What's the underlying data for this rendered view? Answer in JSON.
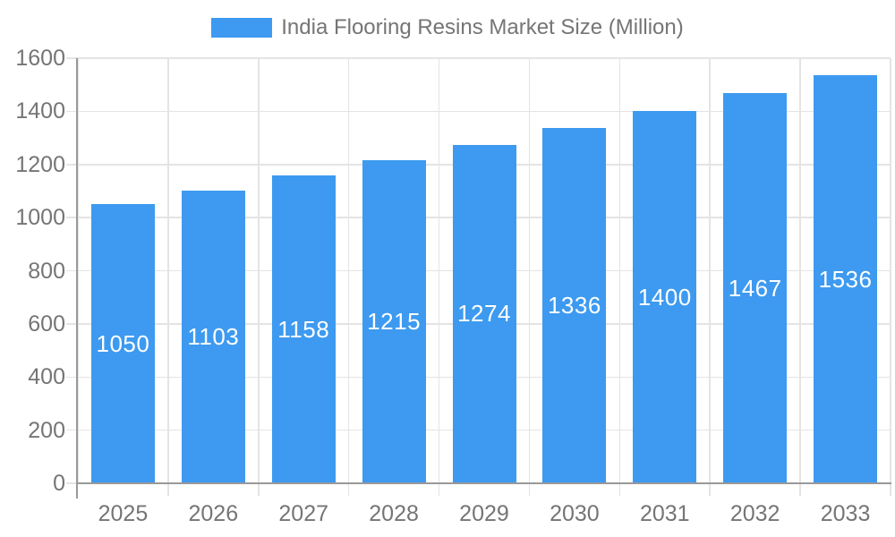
{
  "chart_data": {
    "type": "bar",
    "title": "India Flooring Resins Market Size (Million)",
    "categories": [
      "2025",
      "2026",
      "2027",
      "2028",
      "2029",
      "2030",
      "2031",
      "2032",
      "2033"
    ],
    "series": [
      {
        "name": "India Flooring Resins Market Size (Million)",
        "values": [
          1050,
          1103,
          1158,
          1215,
          1274,
          1336,
          1400,
          1467,
          1536
        ]
      }
    ],
    "xlabel": "",
    "ylabel": "",
    "ylim": [
      0,
      1600
    ],
    "ytick_step": 200,
    "grid": true,
    "legend_position": "top-center",
    "value_labels": "inside-center",
    "colors": {
      "bar": "#3D9AF0",
      "grid": "#E4E4E4",
      "axis": "#999999",
      "tick_text": "#757575",
      "legend_text": "#757575",
      "value_label_text": "#FFFFFF",
      "background": "#FFFFFF"
    }
  }
}
